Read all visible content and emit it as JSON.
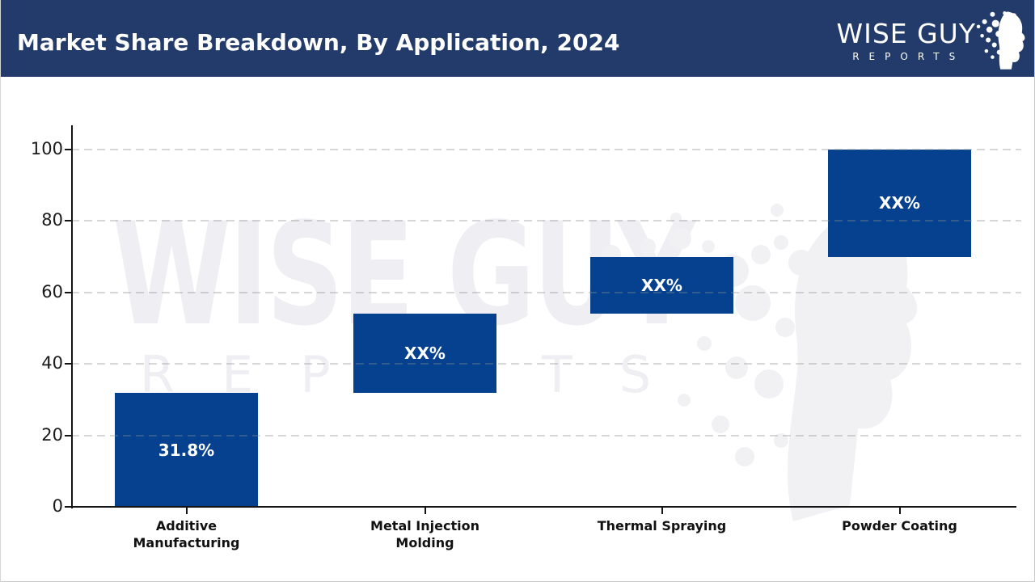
{
  "header": {
    "title": "Market Share Breakdown, By Application, 2024",
    "bg_color": "#223b6a",
    "logo": {
      "name": "WISE GUY",
      "sub": "REPORTS"
    }
  },
  "chart_data": {
    "type": "bar",
    "variant": "waterfall",
    "title": "Market Share Breakdown, By Application, 2024",
    "categories": [
      "Additive\nManufacturing",
      "Metal Injection\nMolding",
      "Thermal Spraying",
      "Powder Coating"
    ],
    "series": [
      {
        "name": "Market share (%)",
        "segments": [
          {
            "category": "Additive Manufacturing",
            "start": 0,
            "end": 31.8,
            "label": "31.8%"
          },
          {
            "category": "Metal Injection Molding",
            "start": 31.8,
            "end": 54,
            "label": "XX%"
          },
          {
            "category": "Thermal Spraying",
            "start": 54,
            "end": 70,
            "label": "XX%"
          },
          {
            "category": "Powder Coating",
            "start": 70,
            "end": 100,
            "label": "XX%"
          }
        ]
      }
    ],
    "xlabel": "",
    "ylabel": "",
    "ylim": [
      0,
      100
    ],
    "yticks": [
      0,
      20,
      40,
      60,
      80,
      100
    ],
    "grid": "horizontal-dashed",
    "legend": "none",
    "bar_color": "#05418f",
    "bar_label_color": "#ffffff",
    "watermark": {
      "line1": "WISE GUY",
      "line2": "REPORTS"
    }
  }
}
